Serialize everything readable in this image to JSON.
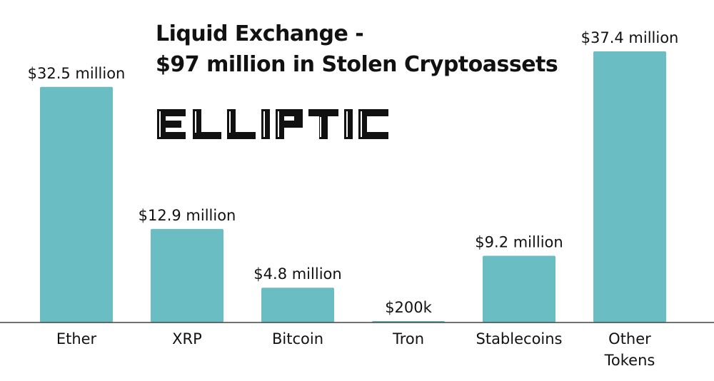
{
  "chart_data": {
    "type": "bar",
    "title": "Liquid Exchange -",
    "subtitle": "$97 million in Stolen Cryptoassets",
    "categories": [
      "Ether",
      "XRP",
      "Bitcoin",
      "Tron",
      "Stablecoins",
      "Other Tokens"
    ],
    "category_lines": [
      [
        "Ether"
      ],
      [
        "XRP"
      ],
      [
        "Bitcoin"
      ],
      [
        "Tron"
      ],
      [
        "Stablecoins"
      ],
      [
        "Other",
        "Tokens"
      ]
    ],
    "values": [
      32.5,
      12.9,
      4.8,
      0.2,
      9.2,
      37.4
    ],
    "value_labels": [
      "$32.5 million",
      "$12.9 million",
      "$4.8 million",
      "$200k",
      "$9.2 million",
      "$37.4 million"
    ],
    "unit": "million USD",
    "xlabel": "",
    "ylabel": "",
    "ylim": [
      0,
      37.4
    ],
    "grid": false,
    "legend": "none",
    "bar_color": "#6bbdc4"
  },
  "logo": {
    "text": "ELLIPTIC"
  }
}
